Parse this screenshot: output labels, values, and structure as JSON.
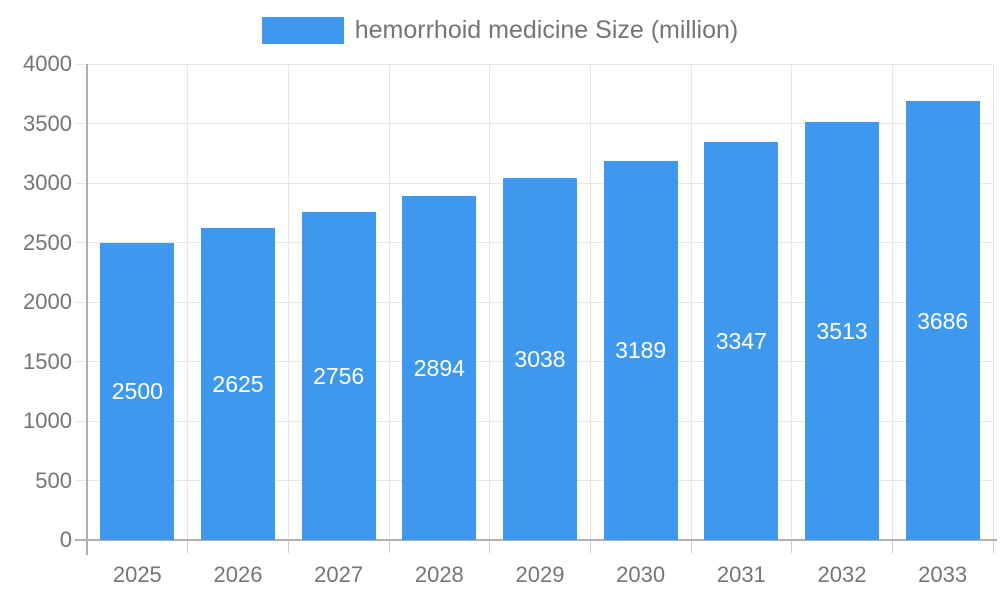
{
  "legend": {
    "label": "hemorrhoid medicine Size (million)",
    "swatch_color": "#3e99ee"
  },
  "chart_data": {
    "type": "bar",
    "title": "hemorrhoid medicine Size (million)",
    "series_name": "hemorrhoid medicine Size (million)",
    "categories": [
      "2025",
      "2026",
      "2027",
      "2028",
      "2029",
      "2030",
      "2031",
      "2032",
      "2033"
    ],
    "values": [
      2500,
      2625,
      2756,
      2894,
      3038,
      3189,
      3347,
      3513,
      3686
    ],
    "xlabel": "",
    "ylabel": "",
    "ylim": [
      0,
      4000
    ],
    "ytick_step": 500,
    "yticks": [
      "0",
      "500",
      "1000",
      "1500",
      "2000",
      "2500",
      "3000",
      "3500",
      "4000"
    ],
    "grid": true,
    "legend_position": "top",
    "colors": {
      "bar": "#3e99ee",
      "value_label": "#ffffff",
      "axis_text": "#757575",
      "grid_line": "#e6e6e6",
      "axis_line": "#b0b0b0",
      "x_tick": "#cccccc",
      "background": "#ffffff"
    }
  }
}
